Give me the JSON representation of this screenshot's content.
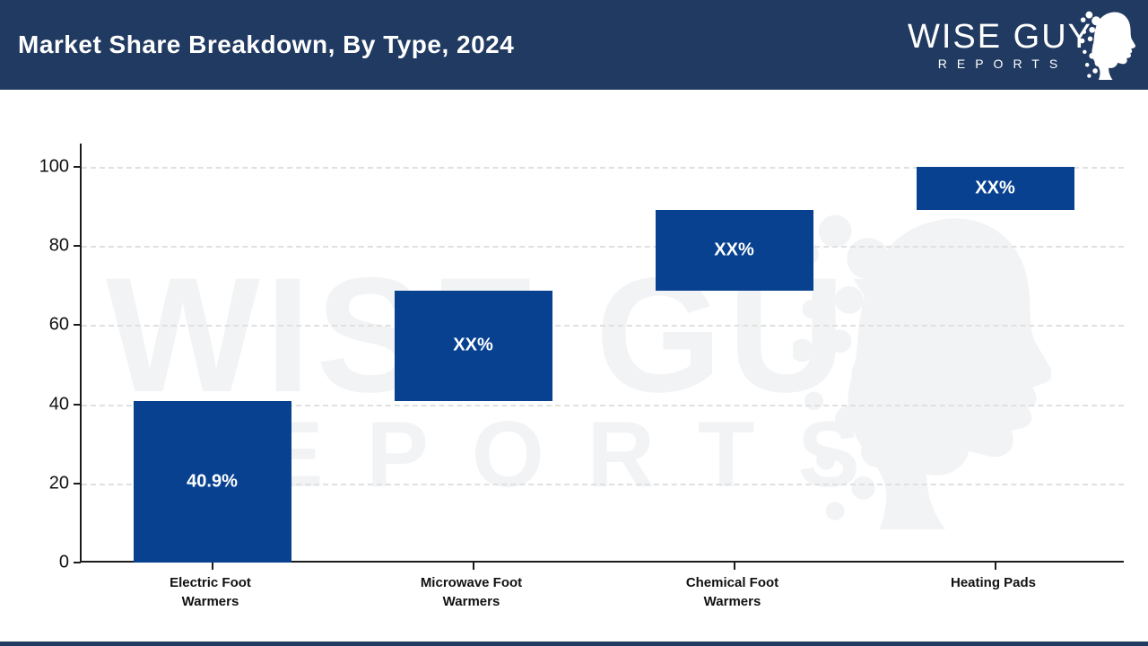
{
  "header": {
    "title": "Market Share Breakdown, By Type, 2024",
    "logo": {
      "line1": "WISE GUY",
      "line2": "REPORTS"
    }
  },
  "watermark": {
    "line1": "WISE GUY",
    "line2": "REPORTS"
  },
  "colors": {
    "header_bg": "#213a61",
    "footer_bg": "#213a61",
    "bar": "#074190",
    "axis": "#1c1c1c",
    "gridline": "#e0e0e0",
    "bar_label": "#ffffff",
    "watermark": "#f2f3f5"
  },
  "chart_data": {
    "type": "bar",
    "subtype": "waterfall",
    "title": "Market Share Breakdown, By Type, 2024",
    "categories": [
      "Electric Foot\nWarmers",
      "Microwave Foot\nWarmers",
      "Chemical Foot\nWarmers",
      "Heating Pads"
    ],
    "series": [
      {
        "name": "Market share %",
        "segments": [
          {
            "start": 0,
            "end": 40.9,
            "label": "40.9%"
          },
          {
            "start": 40.9,
            "end": 68.7,
            "label": "XX%"
          },
          {
            "start": 68.7,
            "end": 89.1,
            "label": "XX%"
          },
          {
            "start": 89.1,
            "end": 100,
            "label": "XX%"
          }
        ]
      }
    ],
    "ylim": [
      0,
      100
    ],
    "yticks": [
      0,
      20,
      40,
      60,
      80,
      100
    ],
    "xlabel": "",
    "ylabel": "",
    "grid": "horizontal-dashed",
    "legend": "none"
  }
}
